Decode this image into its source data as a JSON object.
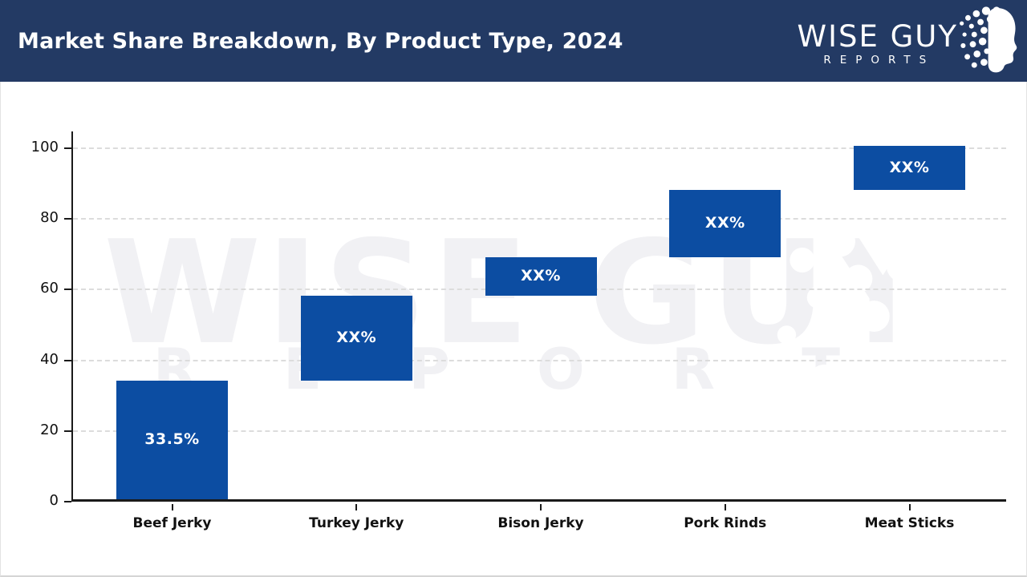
{
  "header": {
    "title": "Market Share Breakdown, By Product Type, 2024",
    "bg_color": "#233a64",
    "logo": {
      "line1": "WISE GUY",
      "line2": "REPORTS"
    }
  },
  "watermark": {
    "line1": "WISE GUY",
    "line2": "R E P O R T S"
  },
  "chart_data": {
    "type": "bar",
    "subtype": "waterfall",
    "title": "Market Share Breakdown, By Product Type, 2024",
    "categories": [
      "Beef Jerky",
      "Turkey Jerky",
      "Bison Jerky",
      "Pork Rinds",
      "Meat Sticks"
    ],
    "segments": [
      {
        "category": "Beef Jerky",
        "start": 0,
        "end": 33.5,
        "label": "33.5%"
      },
      {
        "category": "Turkey Jerky",
        "start": 33.5,
        "end": 57.5,
        "label": "XX%"
      },
      {
        "category": "Bison Jerky",
        "start": 57.5,
        "end": 68.5,
        "label": "XX%"
      },
      {
        "category": "Pork Rinds",
        "start": 68.5,
        "end": 87.5,
        "label": "XX%"
      },
      {
        "category": "Meat Sticks",
        "start": 87.5,
        "end": 100,
        "label": "XX%"
      }
    ],
    "xlabel": "",
    "ylabel": "",
    "ylim": [
      0,
      100
    ],
    "yticks": [
      0,
      20,
      40,
      60,
      80,
      100
    ],
    "grid": {
      "axis": "y",
      "style": "dashed",
      "color": "#dcdcdc"
    },
    "legend": "none",
    "bar_color": "#0c4da2",
    "bar_label_color": "#ffffff",
    "axis_color": "#1a1a1a"
  }
}
